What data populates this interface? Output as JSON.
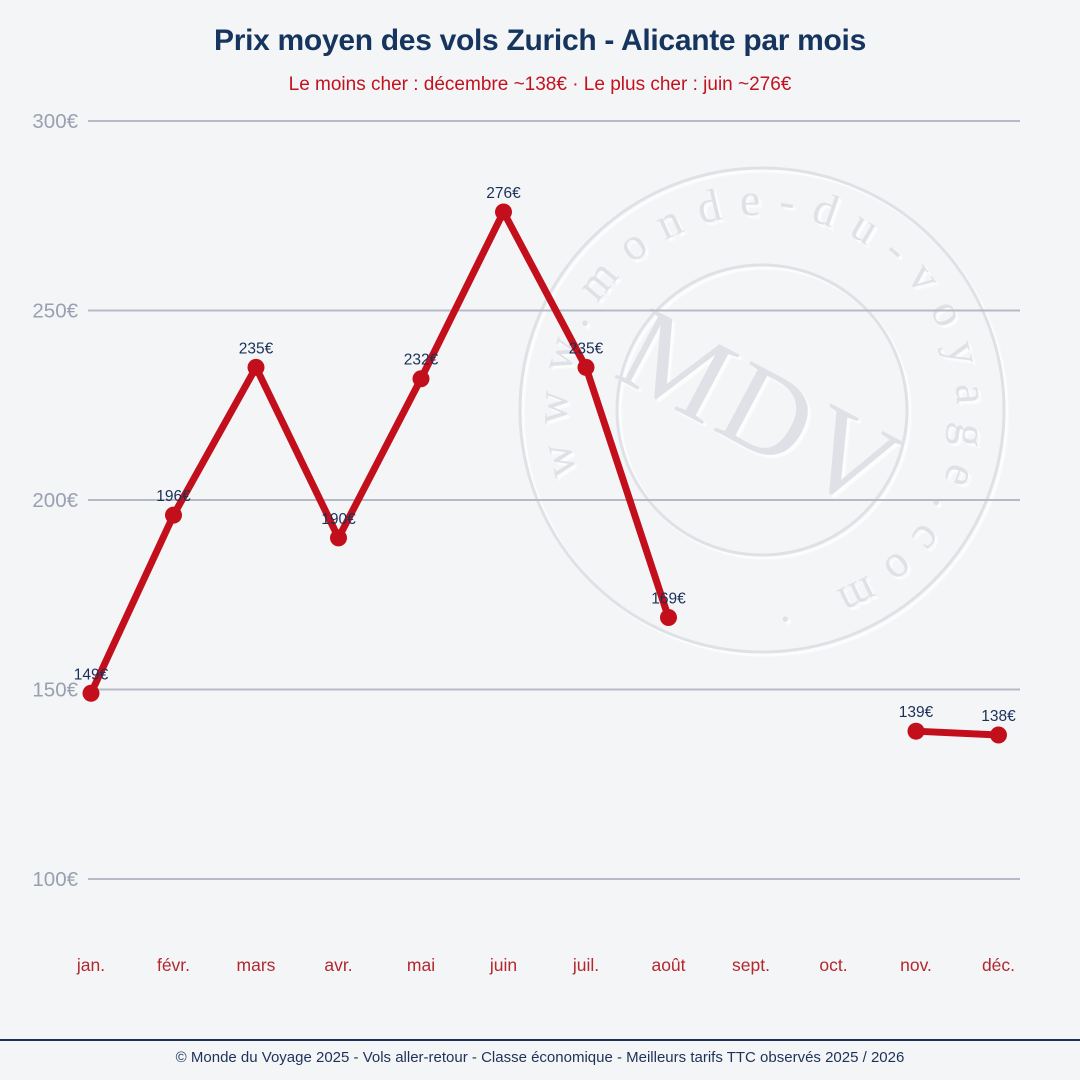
{
  "header": {
    "title": "Prix moyen des vols Zurich - Alicante par mois",
    "subtitle": "Le moins cher : décembre ~138€ · Le plus cher : juin ~276€"
  },
  "chart_data": {
    "type": "line",
    "title": "Prix moyen des vols Zurich - Alicante par mois",
    "categories": [
      "jan.",
      "févr.",
      "mars",
      "avr.",
      "mai",
      "juin",
      "juil.",
      "août",
      "sept.",
      "oct.",
      "nov.",
      "déc."
    ],
    "values": [
      149,
      196,
      235,
      190,
      232,
      276,
      235,
      169,
      null,
      null,
      139,
      138
    ],
    "point_labels": [
      "149€",
      "196€",
      "235€",
      "190€",
      "232€",
      "276€",
      "235€",
      "169€",
      null,
      null,
      "139€",
      "138€"
    ],
    "yticks": [
      300,
      250,
      200,
      150,
      100
    ],
    "ytick_labels": [
      "300€",
      "250€",
      "200€",
      "150€",
      "100€"
    ],
    "ylim": [
      100,
      300
    ],
    "unit": "€",
    "grid": true,
    "legend": false,
    "marker": "circle",
    "gap_months": [
      "sept.",
      "oct."
    ]
  },
  "watermark": {
    "ring_text": "www.monde-du-voyage.com ·",
    "center_text": "MDV"
  },
  "footer": {
    "text": "© Monde du Voyage 2025 - Vols aller-retour - Classe économique - Meilleurs tarifs TTC observés 2025 / 2026"
  },
  "colors": {
    "background": "#f4f5f7",
    "title": "#16355e",
    "subtitle": "#c3121e",
    "axis_labels": "#99a0b2",
    "month_labels": "#b2282e",
    "gridline": "#b6bac6",
    "line": "#c20f1b",
    "point_labels": "#1a3058",
    "footer": "#1c3258",
    "watermark": "#dcdde4"
  }
}
